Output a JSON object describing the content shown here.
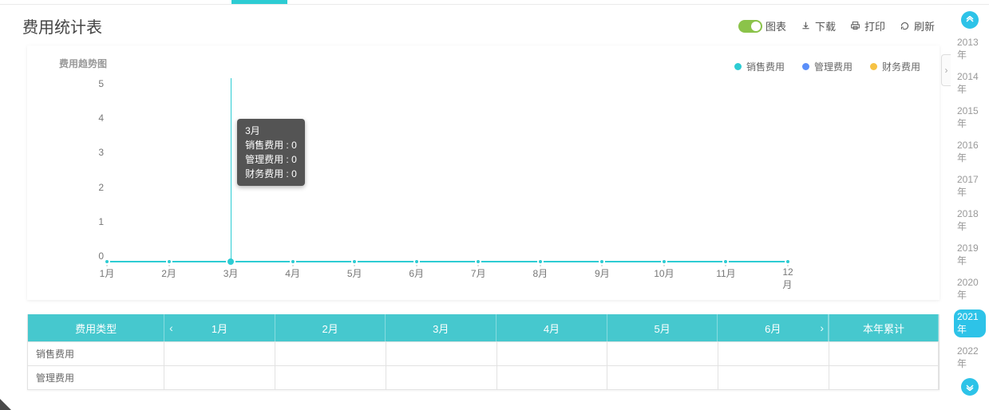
{
  "page": {
    "title": "费用统计表"
  },
  "toolbar": {
    "chart_toggle_label": "图表",
    "download_label": "下载",
    "print_label": "打印",
    "refresh_label": "刷新"
  },
  "chart": {
    "title": "费用趋势图",
    "type": "line",
    "xlabels": [
      "1月",
      "2月",
      "3月",
      "4月",
      "5月",
      "6月",
      "7月",
      "8月",
      "9月",
      "10月",
      "11月",
      "12月"
    ],
    "ylim": [
      0,
      5
    ],
    "ytick_step": 1,
    "yticks": [
      "5",
      "4",
      "3",
      "2",
      "1",
      "0"
    ],
    "series": [
      {
        "name": "销售费用",
        "color": "#2dccd3",
        "values": [
          0,
          0,
          0,
          0,
          0,
          0,
          0,
          0,
          0,
          0,
          0,
          0
        ]
      },
      {
        "name": "管理费用",
        "color": "#5b8ff9",
        "values": [
          0,
          0,
          0,
          0,
          0,
          0,
          0,
          0,
          0,
          0,
          0,
          0
        ]
      },
      {
        "name": "财务费用",
        "color": "#f6c244",
        "values": [
          0,
          0,
          0,
          0,
          0,
          0,
          0,
          0,
          0,
          0,
          0,
          0
        ]
      }
    ],
    "hover_index": 2,
    "hover_line_color": "#2dccd3",
    "tooltip_title": "3月",
    "tooltip_rows": [
      "销售费用 : 0",
      "管理费用 : 0",
      "财务费用 : 0"
    ],
    "background_color": "#ffffff",
    "axis_color": "#bbbbbb",
    "label_color": "#777777"
  },
  "table": {
    "first_header": "费用类型",
    "month_headers": [
      "1月",
      "2月",
      "3月",
      "4月",
      "5月",
      "6月"
    ],
    "last_header": "本年累计",
    "header_bg": "#46c8ce",
    "rows": [
      {
        "label": "销售费用"
      },
      {
        "label": "管理费用"
      }
    ],
    "col_widths_pct": {
      "first": 12,
      "month": 12,
      "last": 12
    }
  },
  "year_rail": {
    "years": [
      "2013年",
      "2014年",
      "2015年",
      "2016年",
      "2017年",
      "2018年",
      "2019年",
      "2020年",
      "2021年",
      "2022年"
    ],
    "selected": "2021年"
  }
}
